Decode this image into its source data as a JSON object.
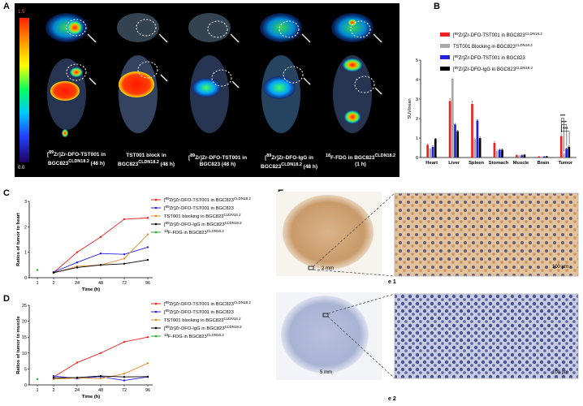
{
  "panelA": {
    "letter": "A",
    "scale_max": "1.5",
    "scale_min": "0.0",
    "captions": [
      "[89Zr]Zr-DFO-TST001 in BGC823CLDN18.2 (48 h)",
      "TST001 block in BGC823CLDN18.2 (48 h)",
      "[89Zr]Zr-DFO-TST001 in BGC823 (48 h)",
      "[89Zr]Zr-DFO-IgG in BGC823CLDN18.2 (48 h)",
      "18F-FDG in BGC823CLDN18.2 (1 h)"
    ]
  },
  "panelB": {
    "letter": "B",
    "chart_data": {
      "type": "bar",
      "categories": [
        "Heart",
        "Liver",
        "Spleen",
        "Stomach",
        "Muscle",
        "Brain",
        "Tumor"
      ],
      "ylabel": "SUVmean",
      "ylim": [
        0,
        5
      ],
      "yticks": [
        "0",
        "1",
        "2",
        "3",
        "4",
        "5"
      ],
      "series": [
        {
          "name": "[89Zr]Zr-DFO-TST001 in BGC823CLDN18.2",
          "color": "#ee2222",
          "values": [
            0.65,
            2.9,
            2.75,
            0.75,
            0.12,
            0.05,
            1.1
          ],
          "err": [
            0.05,
            0.12,
            0.15,
            0.08,
            0.02,
            0.01,
            0.12
          ]
        },
        {
          "name": "TST001 Blocking in BGC823CLDN18.2",
          "color": "#a8a8a8",
          "values": [
            0.45,
            4.05,
            0.95,
            0.35,
            0.1,
            0.04,
            0.2
          ],
          "err": [
            0.04,
            0.05,
            0.08,
            0.05,
            0.01,
            0.01,
            0.03
          ]
        },
        {
          "name": "[89Zr]Zr-DFO-TST001 in BGC823",
          "color": "#2222dd",
          "values": [
            0.55,
            1.7,
            1.9,
            0.4,
            0.12,
            0.05,
            0.45
          ],
          "err": [
            0.05,
            0.05,
            0.05,
            0.04,
            0.02,
            0.01,
            0.05
          ]
        },
        {
          "name": "[89Zr]Zr-DFO-IgG in BGC823CLDN18.2",
          "color": "#000000",
          "values": [
            0.95,
            1.35,
            1.0,
            0.4,
            0.14,
            0.06,
            0.55
          ],
          "err": [
            0.04,
            0.05,
            0.05,
            0.04,
            0.02,
            0.01,
            0.05
          ]
        }
      ],
      "significance": [
        "***",
        "***",
        "***"
      ]
    }
  },
  "panelC": {
    "letter": "C",
    "chart_data": {
      "type": "line",
      "x": [
        "1",
        "2",
        "24",
        "48",
        "72",
        "96"
      ],
      "xlabel": "Time (h)",
      "ylabel": "Ratios of tumor to heart",
      "ylim": [
        0,
        3
      ],
      "yticks": [
        "0",
        "1",
        "2",
        "3"
      ],
      "series": [
        {
          "name": "[89Zr]Zr-DFO-TST001 in BGC823CLDN18.2",
          "color": "#ee2222",
          "values": [
            null,
            0.2,
            1.0,
            1.6,
            2.3,
            2.35
          ]
        },
        {
          "name": "[89Zr]Zr-DFO-TST001 in BGC823",
          "color": "#2222dd",
          "values": [
            null,
            0.22,
            0.6,
            0.95,
            0.92,
            1.2
          ]
        },
        {
          "name": "TST001 blocking in BGC823CLDN18.2",
          "color": "#e08a2a",
          "values": [
            null,
            0.18,
            0.45,
            0.5,
            0.75,
            1.7
          ]
        },
        {
          "name": "[89Zr]Zr-DFO-IgG in BGC823CLDN18.2",
          "color": "#000000",
          "values": [
            null,
            0.2,
            0.4,
            0.5,
            0.55,
            0.7
          ]
        },
        {
          "name": "18F-FDG in BGC823CLDN18.2",
          "color": "#22aa22",
          "values": [
            0.3,
            null,
            null,
            null,
            null,
            null
          ]
        }
      ]
    }
  },
  "panelD": {
    "letter": "D",
    "chart_data": {
      "type": "line",
      "x": [
        "1",
        "2",
        "24",
        "48",
        "72",
        "96"
      ],
      "xlabel": "Time (h)",
      "ylabel": "Ratios of tumor to muscle",
      "ylim": [
        0,
        25
      ],
      "yticks": [
        "0",
        "5",
        "10",
        "15",
        "20",
        "25"
      ],
      "series": [
        {
          "name": "[89Zr]Zr-DFO-TST001 in BGC823CLDN18.2",
          "color": "#ee2222",
          "values": [
            null,
            2.5,
            7.0,
            10.0,
            13.5,
            15.0
          ]
        },
        {
          "name": "[89Zr]Zr-DFO-TST001 in BGC823",
          "color": "#2222dd",
          "values": [
            null,
            2.8,
            2.0,
            2.6,
            1.4,
            2.5
          ]
        },
        {
          "name": "TST001 blocking in BGC823CLDN18.2",
          "color": "#e08a2a",
          "values": [
            null,
            1.8,
            2.2,
            2.0,
            3.5,
            6.8
          ]
        },
        {
          "name": "[89Zr]Zr-DFO-IgG in BGC823CLDN18.2",
          "color": "#000000",
          "values": [
            null,
            2.2,
            2.3,
            2.8,
            2.5,
            2.6
          ]
        },
        {
          "name": "18F-FDG in BGC823CLDN18.2",
          "color": "#22aa22",
          "values": [
            1.8,
            null,
            null,
            null,
            null,
            null
          ]
        }
      ]
    }
  },
  "panelE": {
    "letter": "E",
    "scale1": "2 mm",
    "scale1_zoom": "100 μm",
    "label1": "e 1",
    "scale2": "5 mm",
    "scale2_zoom": "100 μm",
    "label2": "e 2"
  }
}
